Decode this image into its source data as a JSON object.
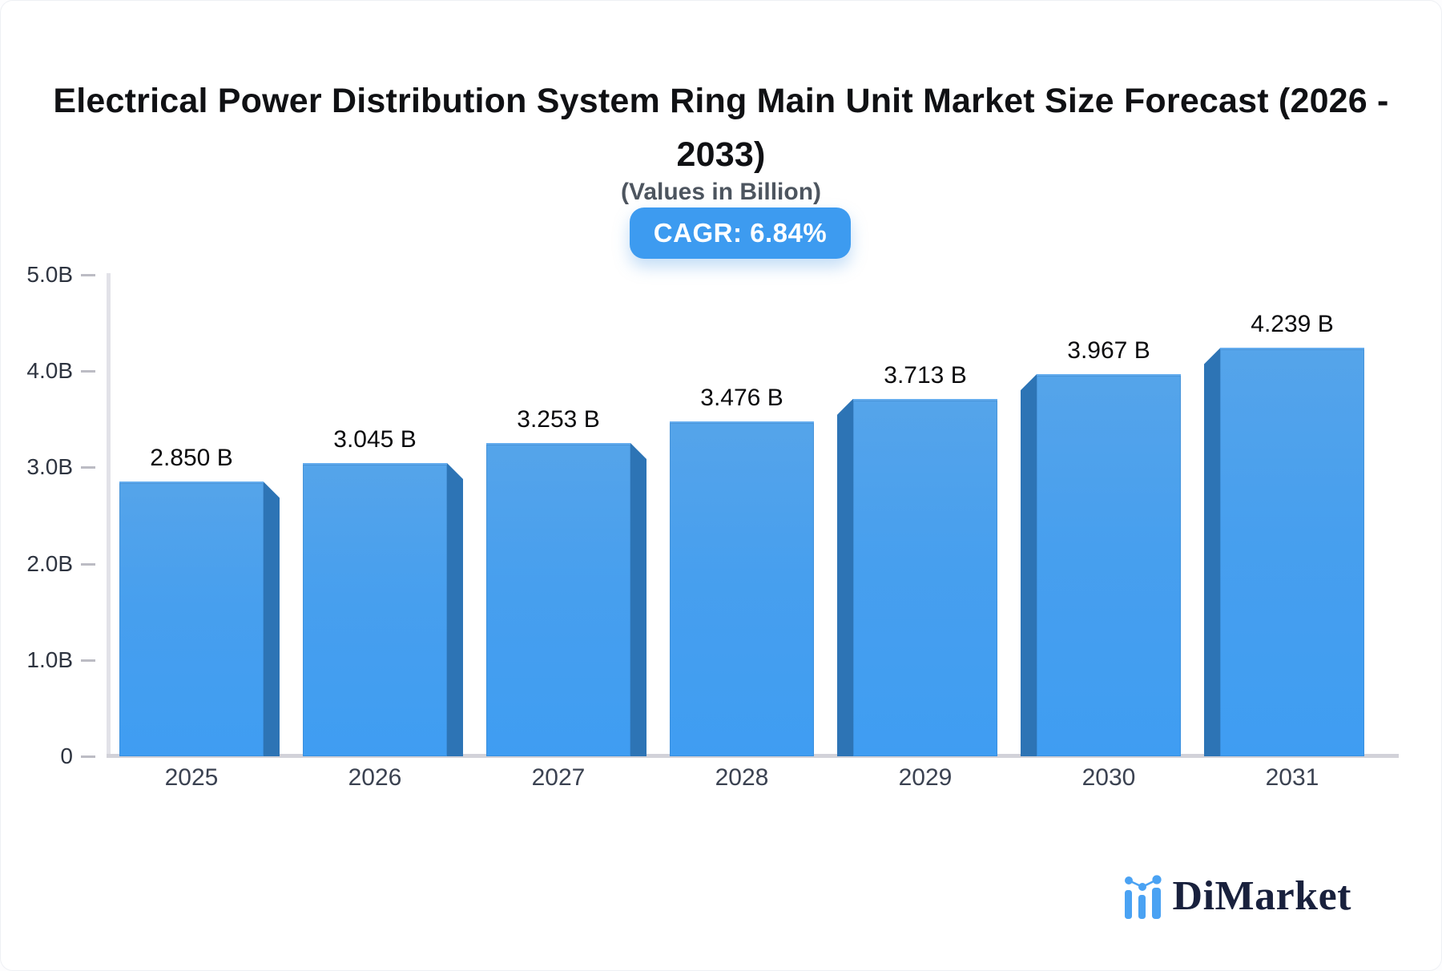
{
  "header": {
    "title_line1": "Electrical Power Distribution System Ring Main Unit Market Size Forecast (2026 -",
    "title_line2": "2033)",
    "subtitle": "(Values in Billion)",
    "cagr_badge": "CAGR: 6.84%"
  },
  "chart_data": {
    "type": "bar",
    "title": "Electrical Power Distribution System Ring Main Unit Market Size Forecast (2026 - 2033)",
    "subtitle": "(Values in Billion)",
    "cagr": "6.84%",
    "unit": "Billion",
    "categories": [
      "2025",
      "2026",
      "2027",
      "2028",
      "2029",
      "2030",
      "2031"
    ],
    "values": [
      2.85,
      3.045,
      3.253,
      3.476,
      3.713,
      3.967,
      4.239
    ],
    "value_labels": [
      "2.850 B",
      "3.045 B",
      "3.253 B",
      "3.476 B",
      "3.713 B",
      "3.967 B",
      "4.239 B"
    ],
    "ylim": [
      0,
      5.0
    ],
    "y_ticks": [
      {
        "label": "0",
        "value": 0
      },
      {
        "label": "1.0B",
        "value": 1
      },
      {
        "label": "2.0B",
        "value": 2
      },
      {
        "label": "3.0B",
        "value": 3
      },
      {
        "label": "4.0B",
        "value": 4
      },
      {
        "label": "5.0B",
        "value": 5
      }
    ],
    "grid": false,
    "legend": false,
    "bar_color": "#459fee",
    "bar_side_color": "#2d74b5"
  },
  "colors": {
    "accent_blue": "#3d9bf0",
    "bar_face_top": "#55a4ea",
    "bar_face_bottom": "#3f9df2",
    "bar_side": "#2d74b5",
    "axis_line": "#d9d9df",
    "logo_icon_blue": "#4aa2f3",
    "logo_text_navy": "#19213d"
  },
  "footer": {
    "logo_text": "DiMarket"
  }
}
